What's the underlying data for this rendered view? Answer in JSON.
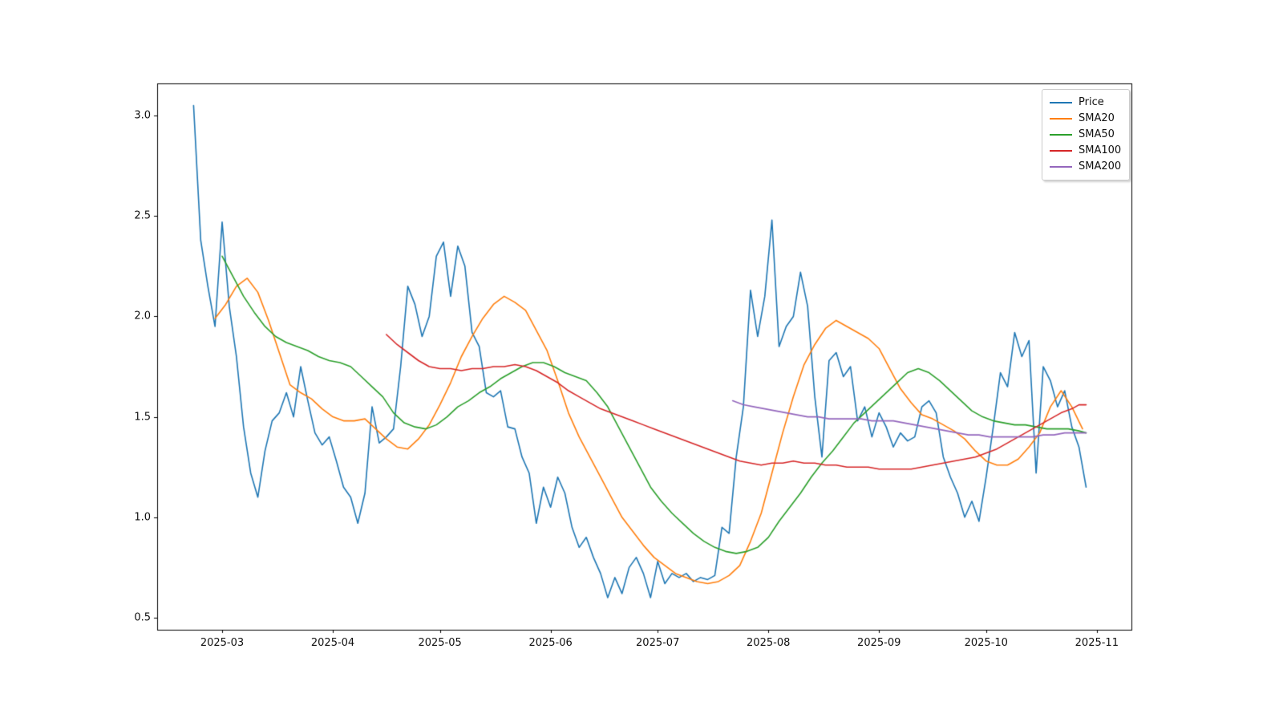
{
  "chart_data": {
    "type": "line",
    "title": "",
    "xlabel": "",
    "ylabel": "",
    "grid": false,
    "legend_position": "upper right",
    "x_unit": "days since 2025-02-20",
    "xlim": [
      -9.2,
      263.7
    ],
    "ylim": [
      0.44,
      3.16
    ],
    "x_ticks": [
      {
        "pos": 9,
        "label": "2025-03"
      },
      {
        "pos": 40,
        "label": "2025-04"
      },
      {
        "pos": 70,
        "label": "2025-05"
      },
      {
        "pos": 101,
        "label": "2025-06"
      },
      {
        "pos": 131,
        "label": "2025-07"
      },
      {
        "pos": 162,
        "label": "2025-08"
      },
      {
        "pos": 193,
        "label": "2025-09"
      },
      {
        "pos": 223,
        "label": "2025-10"
      },
      {
        "pos": 254,
        "label": "2025-11"
      }
    ],
    "y_ticks": [
      {
        "pos": 0.5,
        "label": "0.5"
      },
      {
        "pos": 1.0,
        "label": "1.0"
      },
      {
        "pos": 1.5,
        "label": "1.5"
      },
      {
        "pos": 2.0,
        "label": "2.0"
      },
      {
        "pos": 2.5,
        "label": "2.5"
      },
      {
        "pos": 3.0,
        "label": "3.0"
      }
    ],
    "series": [
      {
        "name": "Price",
        "color": "#1f77b4",
        "x": [
          1,
          3,
          5,
          7,
          9,
          11,
          13,
          15,
          17,
          19,
          21,
          23,
          25,
          27,
          29,
          31,
          33,
          35,
          37,
          39,
          41,
          43,
          45,
          47,
          49,
          51,
          53,
          55,
          57,
          59,
          61,
          63,
          65,
          67,
          69,
          71,
          73,
          75,
          77,
          79,
          81,
          83,
          85,
          87,
          89,
          91,
          93,
          95,
          97,
          99,
          101,
          103,
          105,
          107,
          109,
          111,
          113,
          115,
          117,
          119,
          121,
          123,
          125,
          127,
          129,
          131,
          133,
          135,
          137,
          139,
          141,
          143,
          145,
          147,
          149,
          151,
          153,
          155,
          157,
          159,
          161,
          163,
          165,
          167,
          169,
          171,
          173,
          175,
          177,
          179,
          181,
          183,
          185,
          187,
          189,
          191,
          193,
          195,
          197,
          199,
          201,
          203,
          205,
          207,
          209,
          211,
          213,
          215,
          217,
          219,
          221,
          223,
          225,
          227,
          229,
          231,
          233,
          235,
          237,
          239,
          241,
          243,
          245,
          247,
          249,
          251
        ],
        "values": [
          3.05,
          2.38,
          2.15,
          1.95,
          2.47,
          2.05,
          1.8,
          1.45,
          1.22,
          1.1,
          1.33,
          1.48,
          1.52,
          1.62,
          1.5,
          1.75,
          1.58,
          1.42,
          1.36,
          1.4,
          1.28,
          1.15,
          1.1,
          0.97,
          1.12,
          1.55,
          1.37,
          1.4,
          1.44,
          1.75,
          2.15,
          2.06,
          1.9,
          2.0,
          2.3,
          2.37,
          2.1,
          2.35,
          2.25,
          1.92,
          1.85,
          1.62,
          1.6,
          1.63,
          1.45,
          1.44,
          1.3,
          1.22,
          0.97,
          1.15,
          1.05,
          1.2,
          1.12,
          0.95,
          0.85,
          0.9,
          0.8,
          0.72,
          0.6,
          0.7,
          0.62,
          0.75,
          0.8,
          0.72,
          0.6,
          0.78,
          0.67,
          0.72,
          0.7,
          0.72,
          0.68,
          0.7,
          0.69,
          0.71,
          0.95,
          0.92,
          1.3,
          1.55,
          2.13,
          1.9,
          2.1,
          2.48,
          1.85,
          1.95,
          2.0,
          2.22,
          2.05,
          1.6,
          1.3,
          1.78,
          1.82,
          1.7,
          1.75,
          1.48,
          1.55,
          1.4,
          1.52,
          1.45,
          1.35,
          1.42,
          1.38,
          1.4,
          1.55,
          1.58,
          1.52,
          1.3,
          1.2,
          1.12,
          1.0,
          1.08,
          0.98,
          1.2,
          1.45,
          1.72,
          1.65,
          1.92,
          1.8,
          1.88,
          1.22,
          1.75,
          1.68,
          1.55,
          1.63,
          1.45,
          1.35,
          1.15
        ]
      },
      {
        "name": "SMA20",
        "color": "#ff7f0e",
        "x": [
          7,
          10,
          13,
          16,
          19,
          22,
          25,
          28,
          31,
          34,
          37,
          40,
          43,
          46,
          49,
          52,
          55,
          58,
          61,
          64,
          67,
          70,
          73,
          76,
          79,
          82,
          85,
          88,
          91,
          94,
          97,
          100,
          103,
          106,
          109,
          112,
          115,
          118,
          121,
          124,
          127,
          130,
          133,
          136,
          139,
          142,
          145,
          148,
          151,
          154,
          157,
          160,
          163,
          166,
          169,
          172,
          175,
          178,
          181,
          184,
          187,
          190,
          193,
          196,
          199,
          202,
          205,
          208,
          211,
          214,
          217,
          220,
          223,
          226,
          229,
          232,
          235,
          238,
          241,
          244,
          247,
          250
        ],
        "values": [
          1.99,
          2.06,
          2.15,
          2.19,
          2.12,
          1.98,
          1.82,
          1.66,
          1.62,
          1.59,
          1.54,
          1.5,
          1.48,
          1.48,
          1.49,
          1.44,
          1.39,
          1.35,
          1.34,
          1.39,
          1.46,
          1.56,
          1.67,
          1.8,
          1.9,
          1.99,
          2.06,
          2.1,
          2.07,
          2.03,
          1.93,
          1.83,
          1.68,
          1.52,
          1.4,
          1.3,
          1.2,
          1.1,
          1.0,
          0.93,
          0.86,
          0.8,
          0.76,
          0.72,
          0.7,
          0.68,
          0.67,
          0.68,
          0.71,
          0.76,
          0.88,
          1.02,
          1.22,
          1.42,
          1.6,
          1.76,
          1.86,
          1.94,
          1.98,
          1.95,
          1.92,
          1.89,
          1.84,
          1.74,
          1.64,
          1.57,
          1.51,
          1.49,
          1.46,
          1.43,
          1.39,
          1.33,
          1.28,
          1.26,
          1.26,
          1.29,
          1.35,
          1.42,
          1.55,
          1.63,
          1.55,
          1.44
        ]
      },
      {
        "name": "SMA50",
        "color": "#2ca02c",
        "x": [
          9,
          12,
          15,
          18,
          21,
          24,
          27,
          30,
          33,
          36,
          39,
          42,
          45,
          48,
          51,
          54,
          57,
          60,
          63,
          66,
          69,
          72,
          75,
          78,
          81,
          84,
          87,
          90,
          93,
          96,
          99,
          102,
          105,
          108,
          111,
          114,
          117,
          120,
          123,
          126,
          129,
          132,
          135,
          138,
          141,
          144,
          147,
          150,
          153,
          156,
          159,
          162,
          165,
          168,
          171,
          174,
          177,
          180,
          183,
          186,
          189,
          192,
          195,
          198,
          201,
          204,
          207,
          210,
          213,
          216,
          219,
          222,
          225,
          228,
          231,
          234,
          237,
          240,
          243,
          246,
          249,
          251
        ],
        "values": [
          2.3,
          2.2,
          2.1,
          2.02,
          1.95,
          1.9,
          1.87,
          1.85,
          1.83,
          1.8,
          1.78,
          1.77,
          1.75,
          1.7,
          1.65,
          1.6,
          1.52,
          1.47,
          1.45,
          1.44,
          1.46,
          1.5,
          1.55,
          1.58,
          1.62,
          1.65,
          1.69,
          1.72,
          1.75,
          1.77,
          1.77,
          1.75,
          1.72,
          1.7,
          1.68,
          1.62,
          1.55,
          1.45,
          1.35,
          1.25,
          1.15,
          1.08,
          1.02,
          0.97,
          0.92,
          0.88,
          0.85,
          0.83,
          0.82,
          0.83,
          0.85,
          0.9,
          0.98,
          1.05,
          1.12,
          1.2,
          1.27,
          1.33,
          1.4,
          1.47,
          1.52,
          1.57,
          1.62,
          1.67,
          1.72,
          1.74,
          1.72,
          1.68,
          1.63,
          1.58,
          1.53,
          1.5,
          1.48,
          1.47,
          1.46,
          1.46,
          1.45,
          1.44,
          1.44,
          1.44,
          1.43,
          1.42
        ]
      },
      {
        "name": "SMA100",
        "color": "#d62728",
        "x": [
          55,
          58,
          61,
          64,
          67,
          70,
          73,
          76,
          79,
          82,
          85,
          88,
          91,
          94,
          97,
          100,
          103,
          106,
          109,
          112,
          115,
          118,
          121,
          124,
          127,
          130,
          133,
          136,
          139,
          142,
          145,
          148,
          151,
          154,
          157,
          160,
          163,
          166,
          169,
          172,
          175,
          178,
          181,
          184,
          187,
          190,
          193,
          196,
          199,
          202,
          205,
          208,
          211,
          214,
          217,
          220,
          223,
          226,
          229,
          232,
          235,
          238,
          241,
          244,
          247,
          249,
          251
        ],
        "values": [
          1.91,
          1.86,
          1.82,
          1.78,
          1.75,
          1.74,
          1.74,
          1.73,
          1.74,
          1.74,
          1.75,
          1.75,
          1.76,
          1.75,
          1.73,
          1.7,
          1.67,
          1.63,
          1.6,
          1.57,
          1.54,
          1.52,
          1.5,
          1.48,
          1.46,
          1.44,
          1.42,
          1.4,
          1.38,
          1.36,
          1.34,
          1.32,
          1.3,
          1.28,
          1.27,
          1.26,
          1.27,
          1.27,
          1.28,
          1.27,
          1.27,
          1.26,
          1.26,
          1.25,
          1.25,
          1.25,
          1.24,
          1.24,
          1.24,
          1.24,
          1.25,
          1.26,
          1.27,
          1.28,
          1.29,
          1.3,
          1.32,
          1.34,
          1.37,
          1.4,
          1.43,
          1.46,
          1.49,
          1.52,
          1.54,
          1.56,
          1.56
        ]
      },
      {
        "name": "SMA200",
        "color": "#9467bd",
        "x": [
          152,
          155,
          158,
          161,
          164,
          167,
          170,
          173,
          176,
          179,
          182,
          185,
          188,
          191,
          194,
          197,
          200,
          203,
          206,
          209,
          212,
          215,
          218,
          221,
          224,
          227,
          230,
          233,
          236,
          239,
          242,
          245,
          248,
          251
        ],
        "values": [
          1.58,
          1.56,
          1.55,
          1.54,
          1.53,
          1.52,
          1.51,
          1.5,
          1.5,
          1.49,
          1.49,
          1.49,
          1.49,
          1.48,
          1.48,
          1.48,
          1.47,
          1.46,
          1.45,
          1.44,
          1.43,
          1.42,
          1.41,
          1.41,
          1.4,
          1.4,
          1.4,
          1.4,
          1.4,
          1.41,
          1.41,
          1.42,
          1.42,
          1.42
        ]
      }
    ]
  }
}
